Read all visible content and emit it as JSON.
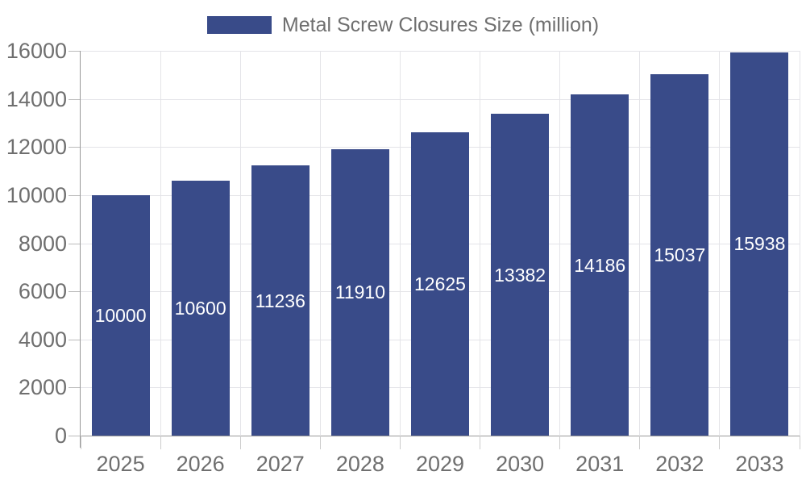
{
  "legend": {
    "label": "Metal Screw Closures Size (million)"
  },
  "chart_data": {
    "type": "bar",
    "title": "Metal Screw Closures Size (million)",
    "series_name": "Metal Screw Closures Size (million)",
    "categories": [
      "2025",
      "2026",
      "2027",
      "2028",
      "2029",
      "2030",
      "2031",
      "2032",
      "2033"
    ],
    "values": [
      10000,
      10600,
      11236,
      11910,
      12625,
      13382,
      14186,
      15037,
      15938
    ],
    "xlabel": "",
    "ylabel": "",
    "ylim": [
      0,
      16000
    ],
    "yticks": [
      0,
      2000,
      4000,
      6000,
      8000,
      10000,
      12000,
      14000,
      16000
    ],
    "grid": true,
    "legend_position": "top",
    "value_labels": "inside-center",
    "colors": {
      "bar": "#394B89",
      "bar_value_label": "#ffffff",
      "axis_line": "#999999",
      "grid_line": "#e4e4e8",
      "x_tick": "#cccccc",
      "tick_label": "#6f6f6f",
      "legend_text": "#6f6f6f",
      "background": "#ffffff"
    }
  }
}
